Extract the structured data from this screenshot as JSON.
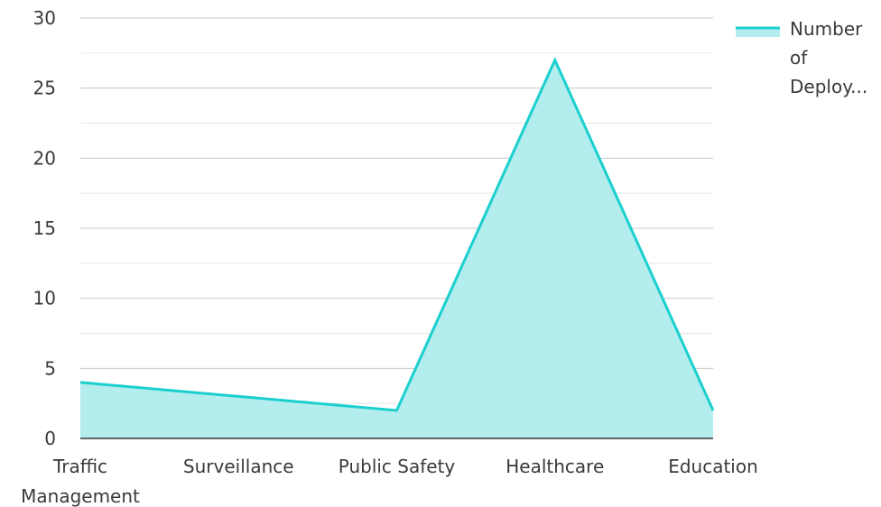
{
  "chart_data": {
    "type": "area",
    "categories": [
      "Traffic Management",
      "Surveillance",
      "Public Safety",
      "Healthcare",
      "Education"
    ],
    "category_label_lines": [
      [
        "Traffic",
        "Management"
      ],
      [
        "Surveillance"
      ],
      [
        "Public Safety"
      ],
      [
        "Healthcare"
      ],
      [
        "Education"
      ]
    ],
    "series": [
      {
        "name": "Number of Deploy...",
        "name_lines": [
          "Number",
          "of",
          "Deploy..."
        ],
        "values": [
          4,
          3,
          2,
          27,
          2
        ],
        "color": "#1ccfcf",
        "fill": "#b3eded"
      }
    ],
    "y_ticks": [
      "0",
      "5",
      "10",
      "15",
      "20",
      "25",
      "30"
    ],
    "ylim": [
      0,
      30
    ],
    "grid": true,
    "minor_grid": true,
    "legend_position": "top-right",
    "xlabel": "",
    "ylabel": ""
  }
}
